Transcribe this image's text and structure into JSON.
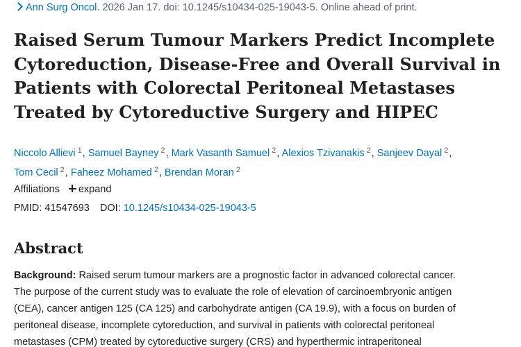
{
  "citation": {
    "journal": "Ann Surg Oncol.",
    "details": "2026 Jan 17. doi: 10.1245/s10434-025-19043-5. Online ahead of print."
  },
  "title_lines": [
    "Raised Serum Tumour Markers Predict Incomplete",
    "Cytoreduction, Disease-Free and Overall Survival in",
    "Patients with Colorectal Peritoneal Metastases",
    "Treated by Cytoreductive Surgery and HIPEC"
  ],
  "authors": [
    {
      "name": "Niccolo Allievi",
      "aff": "1"
    },
    {
      "name": "Samuel Bayney",
      "aff": "2"
    },
    {
      "name": "Mark Vasanth Samuel",
      "aff": "2"
    },
    {
      "name": "Alexios Tzivanakis",
      "aff": "2"
    },
    {
      "name": "Sanjeev Dayal",
      "aff": "2"
    },
    {
      "name": "Tom Cecil",
      "aff": "2"
    },
    {
      "name": "Faheez Mohamed",
      "aff": "2"
    },
    {
      "name": "Brendan Moran",
      "aff": "2"
    }
  ],
  "affiliations": {
    "label": "Affiliations",
    "expand_label": "expand"
  },
  "ids": {
    "pmid_label": "PMID:",
    "pmid": "41547693",
    "doi_label": "DOI:",
    "doi": "10.1245/s10434-025-19043-5"
  },
  "abstract": {
    "heading": "Abstract",
    "background_label": "Background:",
    "lines": [
      "Raised serum tumour markers are a prognostic factor in advanced colorectal cancer.",
      "The purpose of the current study was to evaluate the role of elevation of carcinoembryonic antigen",
      "(CEA), cancer antigen 125 (CA 125) and carbohydrate antigen (CA 19.9), with a focus on burden of",
      "peritoneal disease, incomplete cytoreduction, and survival in patients with colorectal peritoneal",
      "metastases (CPM) treated by cytoreductive surgery (CRS) and hyperthermic intraperitoneal"
    ]
  },
  "colors": {
    "link": "#0071bc",
    "text": "#212121",
    "muted": "#5b616b"
  }
}
